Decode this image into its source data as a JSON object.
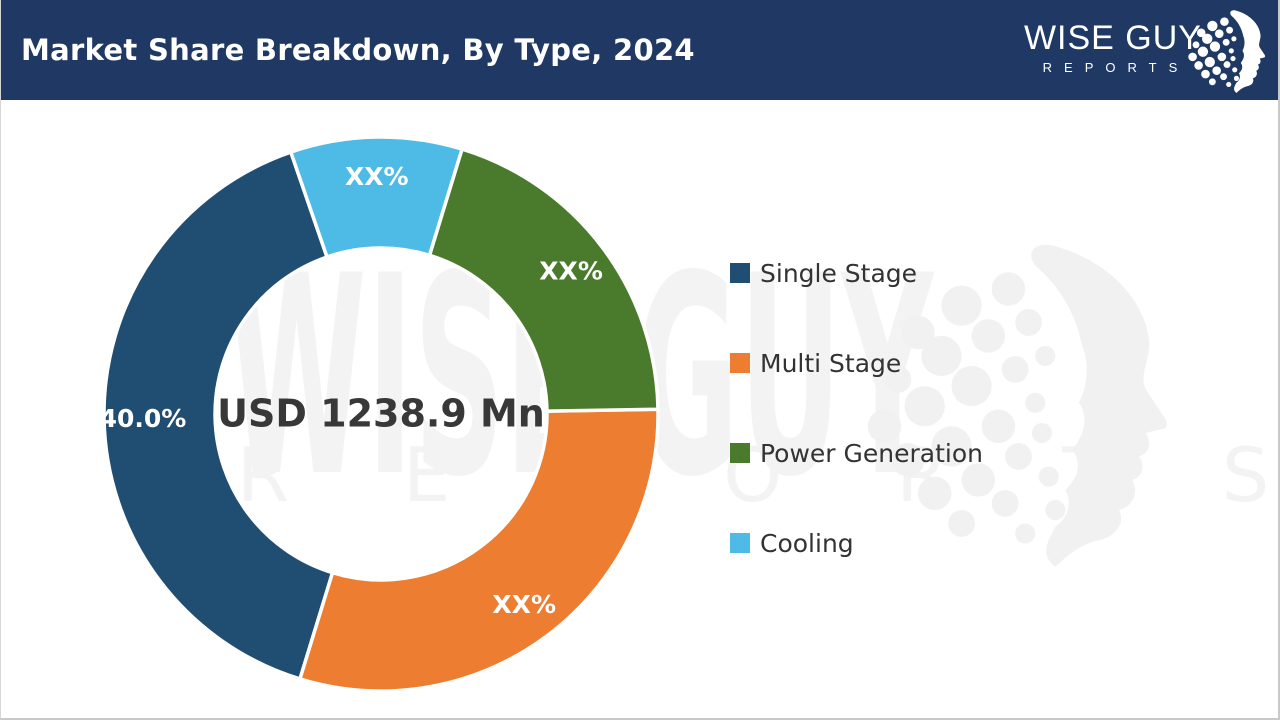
{
  "header": {
    "title": "Market Share Breakdown, By Type, 2024",
    "logo": {
      "line1": "WISE GUY",
      "line2": "REPORTS"
    }
  },
  "chart_data": {
    "type": "pie",
    "subtype": "donut",
    "title": "Market Share Breakdown, By Type, 2024",
    "center_label": "USD 1238.9 Mn",
    "legend_position": "right",
    "start_clock_angle_deg": 341,
    "direction": "counterclockwise",
    "slices": [
      {
        "label": "Single Stage",
        "value_pct": 40,
        "display": "40.0%",
        "color": "#204e73"
      },
      {
        "label": "Multi Stage",
        "value_pct": 30,
        "display": "XX%",
        "color": "#ed7d31"
      },
      {
        "label": "Power Generation",
        "value_pct": 20,
        "display": "XX%",
        "color": "#4a7a2c"
      },
      {
        "label": "Cooling",
        "value_pct": 10,
        "display": "XX%",
        "color": "#4dbbe6"
      }
    ]
  },
  "watermark": {
    "line1": "WISE GUY",
    "line2": "R E P O R T S"
  },
  "colors": {
    "header_bg": "#1f3864",
    "header_text": "#ffffff",
    "legend_text": "#333333",
    "center_text": "#383838",
    "slice_label_text": "#ffffff",
    "watermark": "#f3f3f3",
    "border": "#c9c9c9"
  }
}
